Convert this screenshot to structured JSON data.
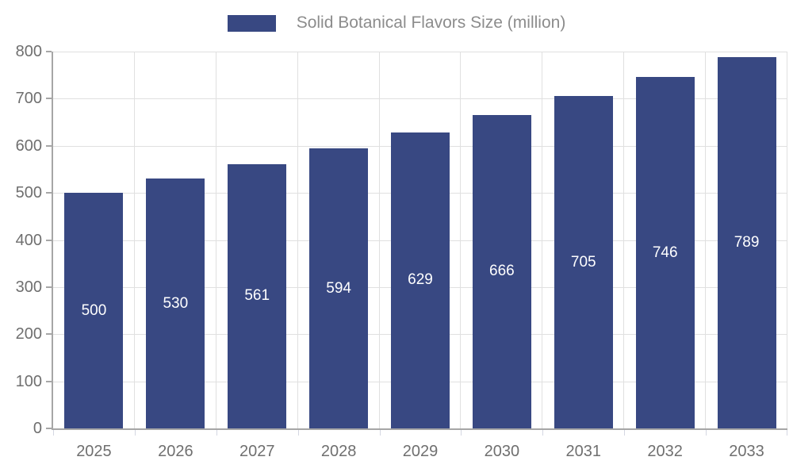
{
  "chart_data": {
    "type": "bar",
    "title": "Solid Botanical Flavors Size (million)",
    "categories": [
      "2025",
      "2026",
      "2027",
      "2028",
      "2029",
      "2030",
      "2031",
      "2032",
      "2033"
    ],
    "values": [
      500,
      530,
      561,
      594,
      629,
      666,
      705,
      746,
      789
    ],
    "xlabel": "",
    "ylabel": "",
    "ylim": [
      0,
      800
    ],
    "ytick_step": 100,
    "ytick_labels": [
      "0",
      "100",
      "200",
      "300",
      "400",
      "500",
      "600",
      "700",
      "800"
    ],
    "grid": true,
    "legend_position": "top",
    "value_labels": "inside-center",
    "colors": {
      "bar": "#384882",
      "axis_line": "#a6a6a6",
      "gridline": "#e0e0e0",
      "axis_text": "#6f6f6f",
      "legend_text": "#8c8c8c",
      "value_text": "#ffffff",
      "background": "#ffffff"
    }
  }
}
